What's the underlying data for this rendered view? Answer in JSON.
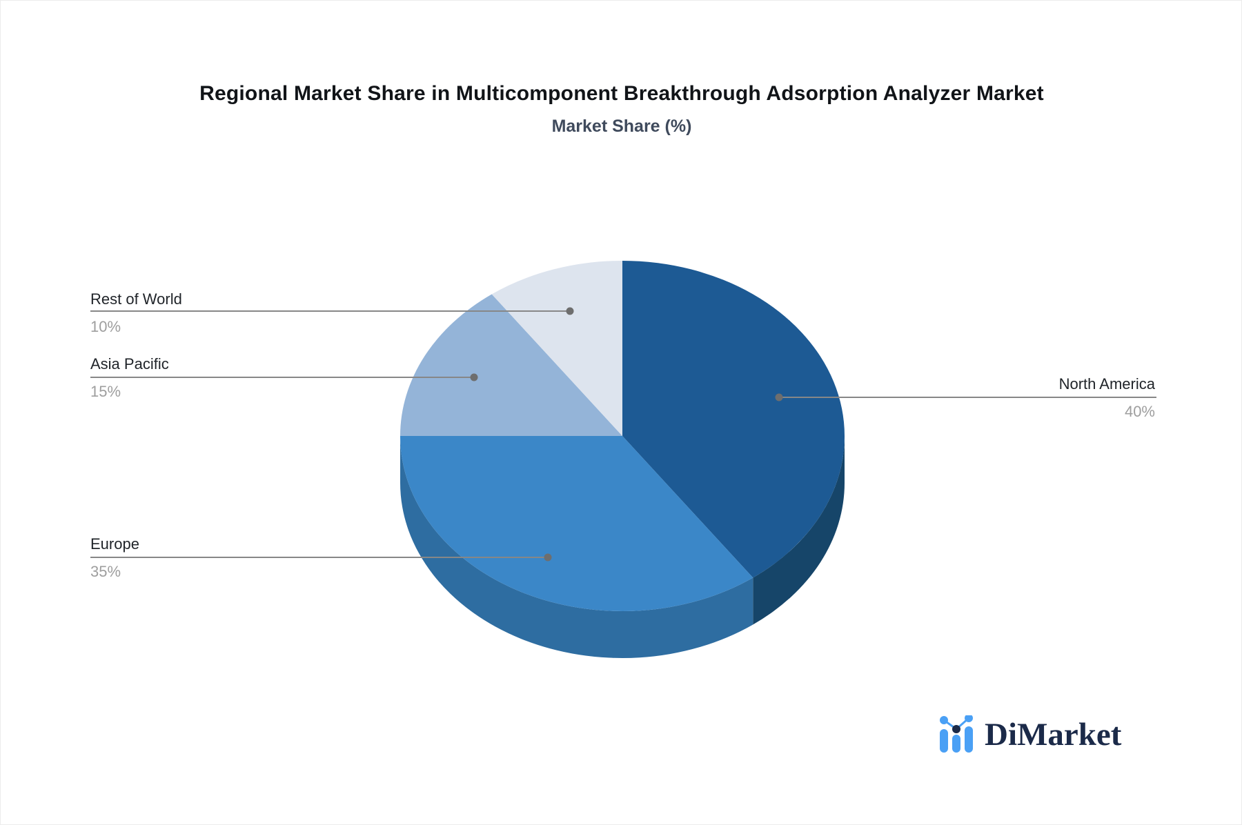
{
  "chart_data": {
    "type": "pie",
    "title": "Regional Market Share in Multicomponent Breakthrough Adsorption Analyzer Market",
    "subtitle": "Market Share (%)",
    "unit": "%",
    "direction": "clockwise",
    "start_angle": "12-oclock",
    "effect": "3d-depth",
    "legend_position": "callout-labels",
    "grid": false,
    "segments": [
      {
        "label": "North America",
        "value": 40,
        "display": "40%",
        "color": "#1d5a94",
        "side_color": "#164569"
      },
      {
        "label": "Europe",
        "value": 35,
        "display": "35%",
        "color": "#3b87c8",
        "side_color": "#2e6da1"
      },
      {
        "label": "Asia Pacific",
        "value": 15,
        "display": "15%",
        "color": "#94b4d8",
        "side_color": "#7a9cc4"
      },
      {
        "label": "Rest of World",
        "value": 10,
        "display": "10%",
        "color": "#dde4ee",
        "side_color": "#c2cddd"
      }
    ],
    "callout_line_color": "#878787",
    "callout_dot_color": "#6e6e6e",
    "label_color": "#1f2328",
    "value_color": "#9e9e9e"
  },
  "branding": {
    "logo_text": "DiMarket",
    "logo_text_color": "#1b2a49",
    "logo_accent_color": "#4aa0f5"
  }
}
